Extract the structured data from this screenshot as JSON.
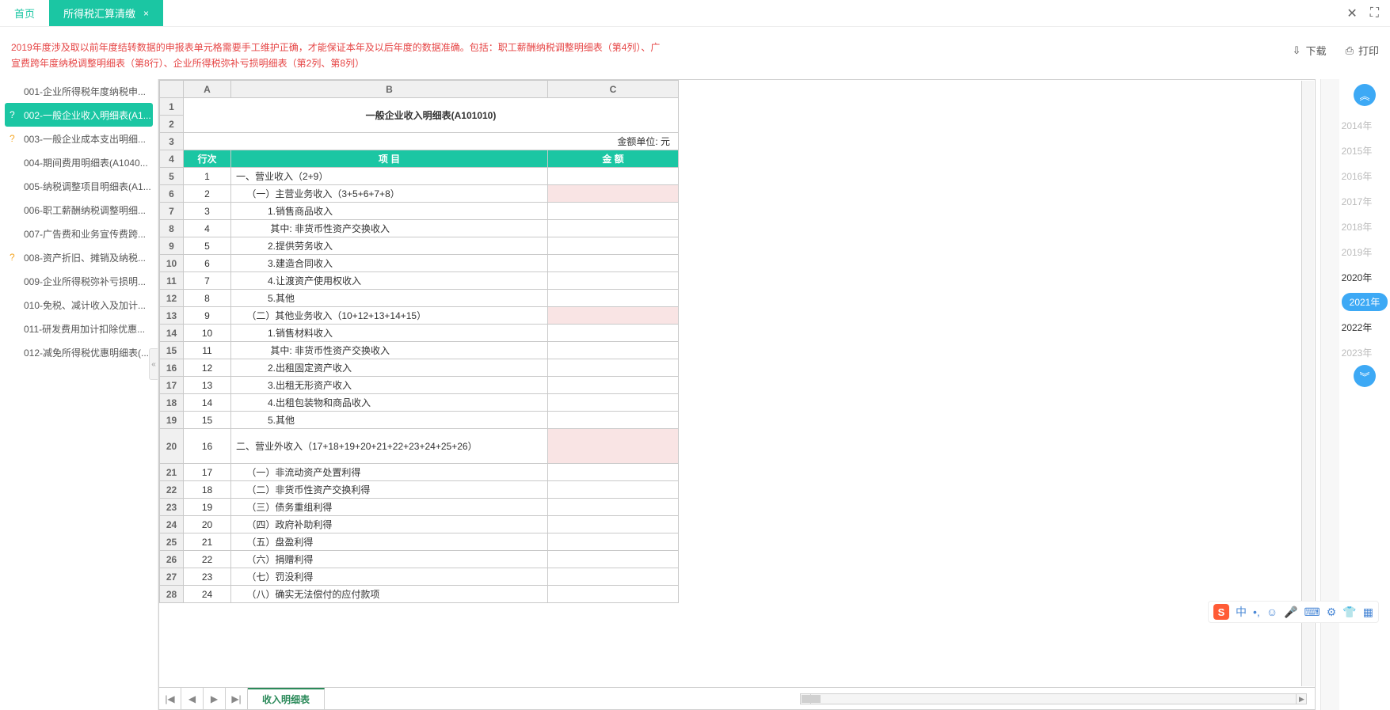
{
  "topbar": {
    "home": "首页",
    "active_tab": "所得税汇算清缴",
    "close_icon": "×",
    "icons": {
      "x": "✕",
      "expand": "⛶"
    }
  },
  "warning": "2019年度涉及取以前年度结转数据的申报表单元格需要手工维护正确，才能保证本年及以后年度的数据准确。包括：职工薪酬纳税调整明细表（第4列）、广宣费跨年度纳税调整明细表（第8行）、企业所得税弥补亏损明细表（第2列、第8列）",
  "actions": {
    "download": "下载",
    "print": "打印",
    "dl_icon": "⇩",
    "pr_icon": "⎙"
  },
  "sidebar": {
    "items": [
      {
        "label": "001-企业所得税年度纳税申...",
        "q": false
      },
      {
        "label": "002-一般企业收入明细表(A1...",
        "q": true,
        "active": true
      },
      {
        "label": "003-一般企业成本支出明细...",
        "q": true
      },
      {
        "label": "004-期间费用明细表(A1040...",
        "q": false
      },
      {
        "label": "005-纳税调整项目明细表(A1...",
        "q": false
      },
      {
        "label": "006-职工薪酬纳税调整明细...",
        "q": false
      },
      {
        "label": "007-广告费和业务宣传费跨...",
        "q": false
      },
      {
        "label": "008-资产折旧、摊销及纳税...",
        "q": true
      },
      {
        "label": "009-企业所得税弥补亏损明...",
        "q": false
      },
      {
        "label": "010-免税、减计收入及加计...",
        "q": false
      },
      {
        "label": "011-研发费用加计扣除优惠...",
        "q": false
      },
      {
        "label": "012-减免所得税优惠明细表(...",
        "q": false
      }
    ],
    "collapse": "«"
  },
  "sheet": {
    "title": "一般企业收入明细表(A101010)",
    "unit": "金额单位: 元",
    "columns": {
      "A": "A",
      "B": "B",
      "C": "C"
    },
    "header": {
      "a": "行次",
      "b": "项  目",
      "c": "金  额"
    },
    "rows": [
      {
        "n": 5,
        "a": "1",
        "b": "一、营业收入（2+9）",
        "pink": false
      },
      {
        "n": 6,
        "a": "2",
        "b": "    （一）主营业务收入（3+5+6+7+8）",
        "pink": true
      },
      {
        "n": 7,
        "a": "3",
        "b": "            1.销售商品收入"
      },
      {
        "n": 8,
        "a": "4",
        "b": "             其中: 非货币性资产交换收入"
      },
      {
        "n": 9,
        "a": "5",
        "b": "            2.提供劳务收入"
      },
      {
        "n": 10,
        "a": "6",
        "b": "            3.建造合同收入"
      },
      {
        "n": 11,
        "a": "7",
        "b": "            4.让渡资产使用权收入"
      },
      {
        "n": 12,
        "a": "8",
        "b": "            5.其他"
      },
      {
        "n": 13,
        "a": "9",
        "b": "    （二）其他业务收入（10+12+13+14+15）",
        "pink": true
      },
      {
        "n": 14,
        "a": "10",
        "b": "            1.销售材料收入"
      },
      {
        "n": 15,
        "a": "11",
        "b": "             其中: 非货币性资产交换收入"
      },
      {
        "n": 16,
        "a": "12",
        "b": "            2.出租固定资产收入"
      },
      {
        "n": 17,
        "a": "13",
        "b": "            3.出租无形资产收入"
      },
      {
        "n": 18,
        "a": "14",
        "b": "            4.出租包装物和商品收入"
      },
      {
        "n": 19,
        "a": "15",
        "b": "            5.其他"
      },
      {
        "n": 20,
        "a": "16",
        "b": "二、营业外收入（17+18+19+20+21+22+23+24+25+26）",
        "pink": true,
        "tall": true
      },
      {
        "n": 21,
        "a": "17",
        "b": "    （一）非流动资产处置利得"
      },
      {
        "n": 22,
        "a": "18",
        "b": "    （二）非货币性资产交换利得"
      },
      {
        "n": 23,
        "a": "19",
        "b": "    （三）债务重组利得"
      },
      {
        "n": 24,
        "a": "20",
        "b": "    （四）政府补助利得"
      },
      {
        "n": 25,
        "a": "21",
        "b": "    （五）盘盈利得"
      },
      {
        "n": 26,
        "a": "22",
        "b": "    （六）捐赠利得"
      },
      {
        "n": 27,
        "a": "23",
        "b": "    （七）罚没利得"
      },
      {
        "n": 28,
        "a": "24",
        "b": "    （八）确实无法偿付的应付款项"
      }
    ],
    "footer_tab": "收入明细表",
    "nav": {
      "first": "|◀",
      "prev": "◀",
      "next": "▶",
      "last": "▶|"
    }
  },
  "years": {
    "up": "︽",
    "down": "︾",
    "list": [
      {
        "y": "2014年"
      },
      {
        "y": "2015年"
      },
      {
        "y": "2016年"
      },
      {
        "y": "2017年"
      },
      {
        "y": "2018年"
      },
      {
        "y": "2019年"
      },
      {
        "y": "2020年",
        "dark": true
      },
      {
        "y": "2021年",
        "active": true
      },
      {
        "y": "2022年",
        "dark": true
      },
      {
        "y": "2023年"
      }
    ]
  },
  "ime": {
    "logo": "S",
    "items": [
      "中",
      "•,",
      "☺",
      "🎤",
      "⌨",
      "⚙",
      "👕",
      "▦"
    ]
  }
}
